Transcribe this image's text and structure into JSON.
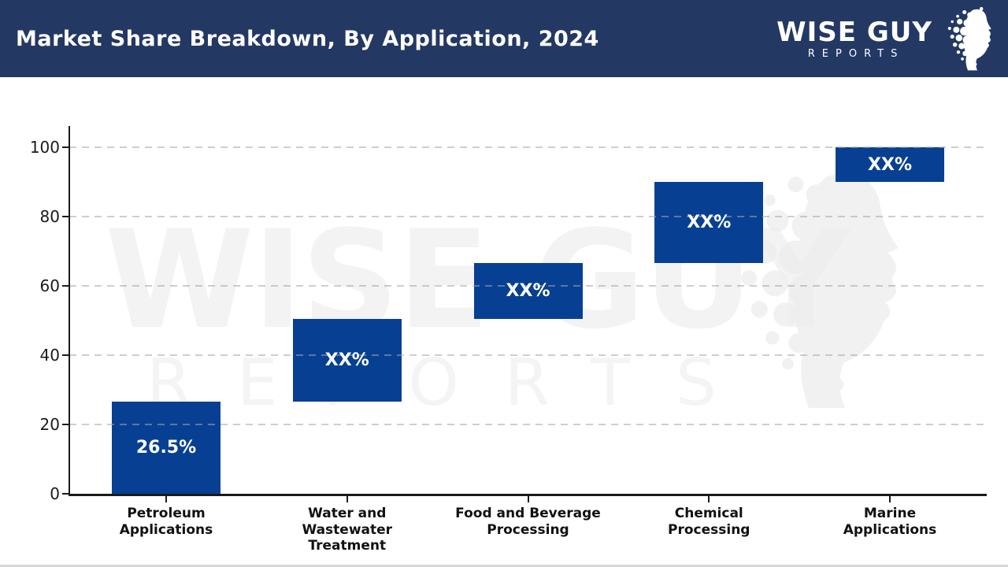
{
  "header": {
    "title": "Market Share Breakdown, By Application, 2024",
    "logo": {
      "line1": "WISE GUY",
      "line2": "REPORTS",
      "face_icon": "dotted-head-profile"
    }
  },
  "watermark": {
    "line1": "WISE GUY",
    "line2": "REPORTS",
    "face_icon": "dotted-head-profile"
  },
  "colors": {
    "header_bg": "#233863",
    "bar": "#074092",
    "axis": "#1a1a1a",
    "grid": "#a5a5a5",
    "bar_label": "#ffffff",
    "watermark": "#f3f3f3"
  },
  "chart_data": {
    "type": "bar",
    "subtype": "waterfall",
    "title": "Market Share Breakdown, By Application, 2024",
    "categories": [
      "Petroleum Applications",
      "Water and Wastewater Treatment",
      "Food and Beverage Processing",
      "Chemical Processing",
      "Marine Applications"
    ],
    "category_lines": [
      [
        "Petroleum",
        "Applications"
      ],
      [
        "Water and",
        "Wastewater",
        "Treatment"
      ],
      [
        "Food and Beverage",
        "Processing"
      ],
      [
        "Chemical",
        "Processing"
      ],
      [
        "Marine",
        "Applications"
      ]
    ],
    "segments": [
      {
        "category": "Petroleum Applications",
        "start": 0,
        "end": 26.5,
        "label": "26.5%"
      },
      {
        "category": "Water and Wastewater Treatment",
        "start": 26.5,
        "end": 50.5,
        "label": "XX%"
      },
      {
        "category": "Food and Beverage Processing",
        "start": 50.5,
        "end": 66.5,
        "label": "XX%"
      },
      {
        "category": "Chemical Processing",
        "start": 66.5,
        "end": 90,
        "label": "XX%"
      },
      {
        "category": "Marine Applications",
        "start": 90,
        "end": 100,
        "label": "XX%"
      }
    ],
    "y_ticks": [
      0,
      20,
      40,
      60,
      80,
      100
    ],
    "ylim": [
      0,
      106
    ],
    "xlabel": "",
    "ylabel": "",
    "grid": "horizontal-dashed",
    "legend": "none"
  }
}
